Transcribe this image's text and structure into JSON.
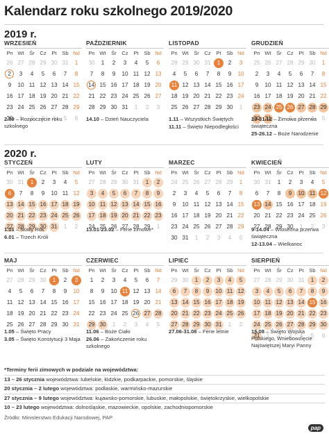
{
  "title": "Kalendarz roku szkolnego 2019/2020",
  "year_2019": "2019 r.",
  "year_2020": "2020 r.",
  "weekdays": [
    "Pn",
    "Wt",
    "Śr",
    "Cz",
    "Pt",
    "Sb",
    "Nd"
  ],
  "months": [
    {
      "name": "WRZESIEŃ",
      "weeks": [
        [
          "26o",
          "27o",
          "28o",
          "29o",
          "30o",
          "31o",
          "1"
        ],
        [
          "2r",
          "3",
          "4",
          "5",
          "6",
          "7",
          "8"
        ],
        [
          "9",
          "10",
          "11",
          "12",
          "13",
          "14",
          "15"
        ],
        [
          "16",
          "17",
          "18",
          "19",
          "20",
          "21",
          "22"
        ],
        [
          "23",
          "24",
          "25",
          "26",
          "27",
          "28",
          "29"
        ],
        [
          "30",
          "1o",
          "2o",
          "3o",
          "4o",
          "5o",
          "6o"
        ]
      ],
      "notes": [
        {
          "date": "2.09",
          "text": "– Rozpoczęcie roku szkolnego"
        }
      ]
    },
    {
      "name": "PAŹDZIERNIK",
      "weeks": [
        [
          "30o",
          "1",
          "2",
          "3",
          "4",
          "5",
          "6"
        ],
        [
          "7",
          "8",
          "9",
          "10",
          "11",
          "12",
          "13"
        ],
        [
          "14r",
          "15",
          "16",
          "17",
          "18",
          "19",
          "20"
        ],
        [
          "21",
          "22",
          "23",
          "24",
          "25",
          "26",
          "27"
        ],
        [
          "28",
          "29",
          "30",
          "31",
          "1o",
          "2o",
          "3o"
        ]
      ],
      "notes": [
        {
          "date": "14.10",
          "text": "– Dzień Nauczyciela"
        }
      ]
    },
    {
      "name": "LISTOPAD",
      "weeks": [
        [
          "28o",
          "29o",
          "30o",
          "31o",
          "1h",
          "2",
          "3"
        ],
        [
          "4",
          "5",
          "6",
          "7",
          "8",
          "9",
          "10"
        ],
        [
          "11h",
          "12",
          "13",
          "14",
          "15",
          "16",
          "17"
        ],
        [
          "18",
          "19",
          "20",
          "21",
          "22",
          "23",
          "24"
        ],
        [
          "25",
          "26",
          "27",
          "28",
          "29",
          "30",
          "1o"
        ]
      ],
      "notes": [
        {
          "date": "1.11",
          "text": "– Wszystkich Świętych"
        },
        {
          "date": "11.11",
          "text": "– Święto Niepodległości"
        }
      ]
    },
    {
      "name": "GRUDZIEŃ",
      "weeks": [
        [
          "25o",
          "26o",
          "27o",
          "28o",
          "29o",
          "30o",
          "1"
        ],
        [
          "2",
          "3",
          "4",
          "5",
          "6",
          "7",
          "8"
        ],
        [
          "9",
          "10",
          "11",
          "12",
          "13",
          "14",
          "15"
        ],
        [
          "16",
          "17",
          "18",
          "19",
          "20",
          "21",
          "22"
        ],
        [
          "23d",
          "24d",
          "25h",
          "26h",
          "27d",
          "28d",
          "29d"
        ],
        [
          "30d",
          "31d",
          "1o",
          "2o",
          "3o",
          "4o",
          "5o"
        ]
      ],
      "notes": [
        {
          "date": "23-31.12",
          "text": "– Zimowa przerwa świąteczna"
        },
        {
          "date": "25-26.12",
          "text": "– Boże Narodzenie"
        }
      ]
    },
    {
      "name": "STYCZEŃ",
      "weeks": [
        [
          "30o",
          "31o",
          "1h",
          "2",
          "3",
          "4",
          "5"
        ],
        [
          "6h",
          "7",
          "8",
          "9",
          "10",
          "11",
          "12"
        ],
        [
          "13l",
          "14l",
          "15l",
          "16l",
          "17l",
          "18l",
          "19l"
        ],
        [
          "20l",
          "21l",
          "22l",
          "23l",
          "24l",
          "25l",
          "26l"
        ],
        [
          "27l",
          "28l",
          "29l",
          "30l",
          "31l",
          "1o",
          "2o"
        ]
      ],
      "notes": [
        {
          "date": "1.01",
          "text": "– Nowy Rok"
        },
        {
          "date": "6.01",
          "text": "– Trzech Króli"
        }
      ]
    },
    {
      "name": "LUTY",
      "weeks": [
        [
          "27o",
          "28o",
          "29o",
          "30o",
          "31o",
          "1l",
          "2l"
        ],
        [
          "3l",
          "4l",
          "5l",
          "6l",
          "7l",
          "8l",
          "9l"
        ],
        [
          "10l",
          "11l",
          "12l",
          "13l",
          "14l",
          "15l",
          "16l"
        ],
        [
          "17l",
          "18l",
          "19l",
          "20l",
          "21l",
          "22l",
          "23l"
        ],
        [
          "24",
          "25",
          "26",
          "27",
          "28",
          "29",
          "1o"
        ]
      ],
      "notes": [
        {
          "date": "13.01-23.02",
          "text": "– Ferie zimowe*"
        }
      ]
    },
    {
      "name": "MARZEC",
      "weeks": [
        [
          "24o",
          "25o",
          "26o",
          "27o",
          "28o",
          "29o",
          "1"
        ],
        [
          "2",
          "3",
          "4",
          "5",
          "6",
          "7",
          "8"
        ],
        [
          "9",
          "10",
          "11",
          "12",
          "13",
          "14",
          "15"
        ],
        [
          "16",
          "17",
          "18",
          "19",
          "20",
          "21",
          "22"
        ],
        [
          "23",
          "24",
          "25",
          "26",
          "27",
          "28",
          "29"
        ],
        [
          "30",
          "31",
          "1o",
          "2o",
          "3o",
          "4o",
          "5o"
        ]
      ],
      "notes": []
    },
    {
      "name": "KWIECIEŃ",
      "weeks": [
        [
          "30o",
          "31o",
          "1",
          "2",
          "3",
          "4",
          "5"
        ],
        [
          "6",
          "7",
          "8",
          "9d",
          "10d",
          "11d",
          "12h"
        ],
        [
          "13h",
          "14d",
          "15",
          "16",
          "17",
          "18",
          "19"
        ],
        [
          "20",
          "21",
          "22",
          "23",
          "24",
          "25",
          "26"
        ],
        [
          "27",
          "28",
          "29",
          "30",
          "1o",
          "2o",
          "3o"
        ]
      ],
      "notes": [
        {
          "date": "9-14.04",
          "text": "– Wiosenna przerwa świąteczna"
        },
        {
          "date": "12-13.04",
          "text": "– Wielkanoc"
        }
      ]
    },
    {
      "name": "MAJ",
      "weeks": [
        [
          "27o",
          "28o",
          "29o",
          "30o",
          "1h",
          "2",
          "3h"
        ],
        [
          "4",
          "5",
          "6",
          "7",
          "8",
          "9",
          "10"
        ],
        [
          "11",
          "12",
          "13",
          "14",
          "15",
          "16",
          "17"
        ],
        [
          "18",
          "19",
          "20",
          "21",
          "22",
          "23",
          "24"
        ],
        [
          "25",
          "26",
          "27",
          "28",
          "29",
          "30",
          "31"
        ]
      ],
      "notes": [
        {
          "date": "1.05",
          "text": "– Święto Pracy"
        },
        {
          "date": "3.05",
          "text": "– Święto Konstytucji 3 Maja"
        }
      ]
    },
    {
      "name": "CZERWIEC",
      "weeks": [
        [
          "1",
          "2",
          "3",
          "4",
          "5",
          "6",
          "7"
        ],
        [
          "8",
          "9",
          "10",
          "11h",
          "12",
          "13",
          "14"
        ],
        [
          "15",
          "16",
          "17",
          "18",
          "19",
          "20",
          "21"
        ],
        [
          "22",
          "23",
          "24",
          "25",
          "26r",
          "27l",
          "28l"
        ],
        [
          "29l",
          "30l",
          "1o",
          "2o",
          "3o",
          "4o",
          "5o"
        ]
      ],
      "notes": [
        {
          "date": "11.06",
          "text": "– Boże Ciało"
        },
        {
          "date": "26.06",
          "text": "– Zakończenie roku szkolnego"
        }
      ]
    },
    {
      "name": "LIPIEC",
      "weeks": [
        [
          "29o",
          "30o",
          "1l",
          "2l",
          "3l",
          "4l",
          "5l"
        ],
        [
          "6l",
          "7l",
          "8l",
          "9l",
          "10l",
          "11l",
          "12l"
        ],
        [
          "13l",
          "14l",
          "15l",
          "16l",
          "17l",
          "18l",
          "19l"
        ],
        [
          "20l",
          "21l",
          "22l",
          "23l",
          "24l",
          "25l",
          "26l"
        ],
        [
          "27l",
          "28l",
          "29l",
          "30l",
          "31l",
          "1o",
          "2o"
        ]
      ],
      "notes": [
        {
          "date": "27.06-31.08",
          "text": "– Ferie letnie"
        }
      ]
    },
    {
      "name": "SIERPIEŃ",
      "weeks": [
        [
          "27o",
          "28o",
          "29o",
          "30o",
          "31o",
          "1l",
          "2l"
        ],
        [
          "3l",
          "4l",
          "5l",
          "6l",
          "7l",
          "8l",
          "9l"
        ],
        [
          "10l",
          "11l",
          "12l",
          "13l",
          "14l",
          "15h",
          "16l"
        ],
        [
          "17l",
          "18l",
          "19l",
          "20l",
          "21l",
          "22l",
          "23l"
        ],
        [
          "24l",
          "25l",
          "26l",
          "27l",
          "28l",
          "29l",
          "30l"
        ],
        [
          "31l",
          "1o",
          "2o",
          "3o",
          "4o",
          "5o",
          "6o"
        ]
      ],
      "notes": [
        {
          "date": "15.08",
          "text": "– Święto Wojska Polskiego, Wniebowzięcie Najświętszej Maryi Panny"
        }
      ]
    }
  ],
  "ferie": {
    "heading": "*Terminy ferii zimowych w podziale na województwa:",
    "rows": [
      {
        "dates": "13 – 26 stycznia",
        "label": "województwa:",
        "regions": "lubelskie, łódzkie, podkarpackie, pomorskie, śląskie"
      },
      {
        "dates": "20 stycznia – 2 lutego",
        "label": "województwa:",
        "regions": "podlaskie, warmińsko-mazurskie"
      },
      {
        "dates": "27 stycznia – 9 lutego",
        "label": "województwa:",
        "regions": "kujawsko-pomorskie, lubuskie, małopolskie, świętokrzyskie, wielkopolskie"
      },
      {
        "dates": "10 – 23 lutego",
        "label": "województwa:",
        "regions": "dolnośląskie, mazowieckie, opolskie, zachodniopomorskie"
      }
    ]
  },
  "source": "Źródło: Ministerstwo Edukacji Narodowej, PAP",
  "logo": "pap"
}
